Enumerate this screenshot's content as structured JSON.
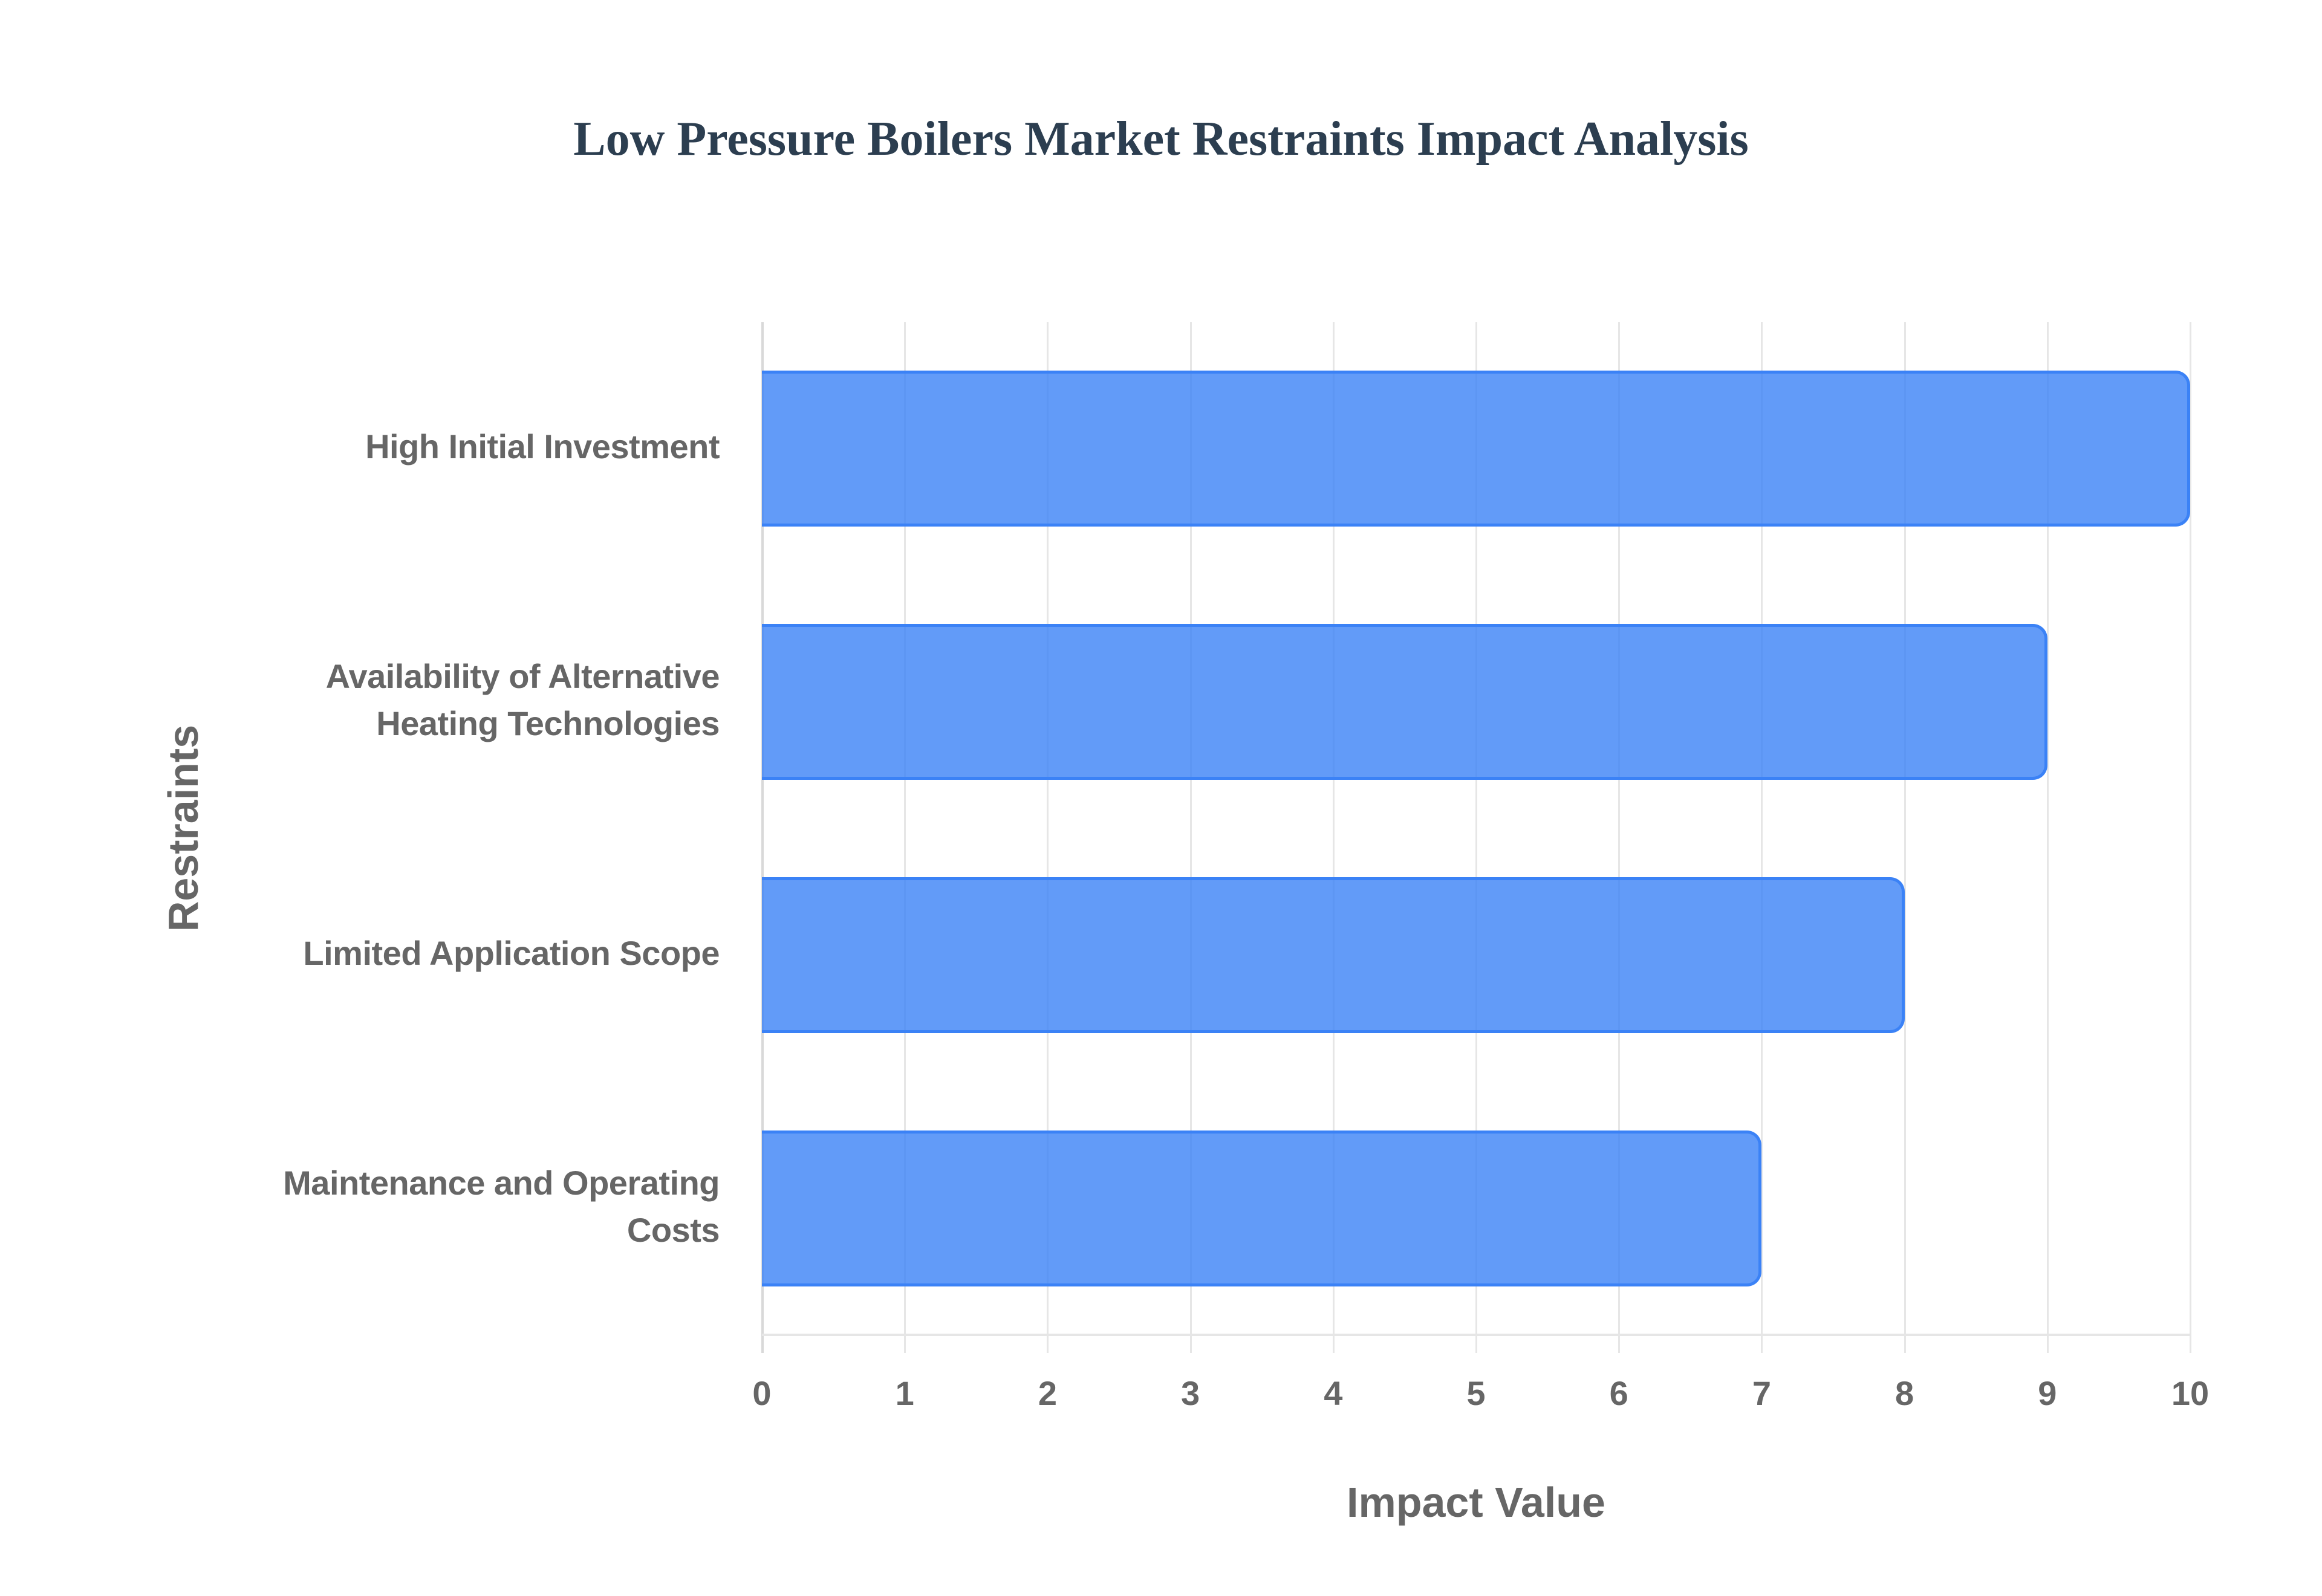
{
  "chart": {
    "title": "Low Pressure Boilers Market Restraints Impact Analysis",
    "xlabel": "Impact Value",
    "ylabel": "Restraints",
    "x_ticks": [
      "0",
      "1",
      "2",
      "3",
      "4",
      "5",
      "6",
      "7",
      "8",
      "9",
      "10"
    ],
    "categories": [
      [
        "High Initial Investment"
      ],
      [
        "Availability of Alternative",
        "Heating Technologies"
      ],
      [
        "Limited Application Scope"
      ],
      [
        "Maintenance and Operating",
        "Costs"
      ]
    ],
    "bar_color": "#3b82f6"
  },
  "chart_data": {
    "type": "bar",
    "orientation": "horizontal",
    "title": "Low Pressure Boilers Market Restraints Impact Analysis",
    "xlabel": "Impact Value",
    "ylabel": "Restraints",
    "categories": [
      "High Initial Investment",
      "Availability of Alternative Heating Technologies",
      "Limited Application Scope",
      "Maintenance and Operating Costs"
    ],
    "values": [
      10,
      9,
      8,
      7
    ],
    "xlim": [
      0,
      10
    ],
    "x_ticks": [
      0,
      1,
      2,
      3,
      4,
      5,
      6,
      7,
      8,
      9,
      10
    ],
    "grid": true,
    "legend": null,
    "colors": {
      "fill": "rgba(59,130,246,0.8)",
      "border": "#3b82f6"
    }
  }
}
